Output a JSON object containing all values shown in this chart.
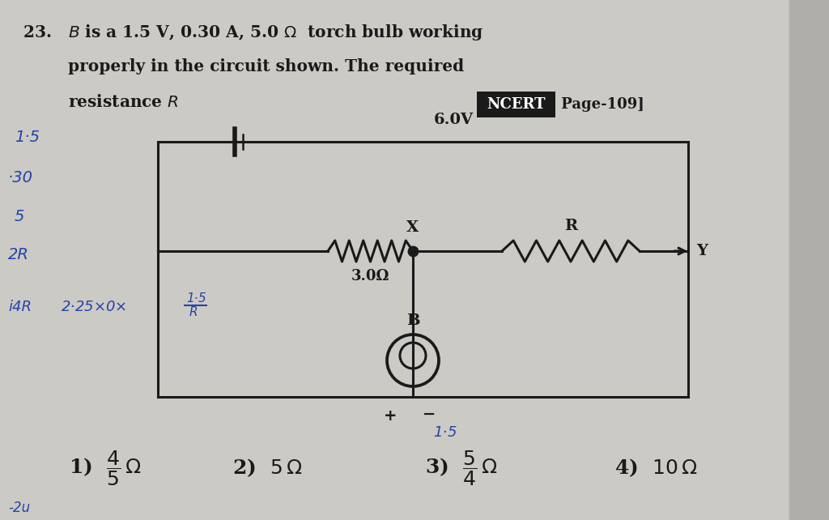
{
  "bg_color": "#cccac5",
  "right_strip_color": "#b0aeaa",
  "black": "#1a1a1a",
  "hw_color": "#2244aa",
  "circuit": {
    "battery_label": "6.0V",
    "resistor1_label": "3.0Ω",
    "node_x_label": "X",
    "resistor2_label": "R",
    "node_y_label": "Y",
    "bulb_label": "B",
    "plus_label": "+",
    "minus_label": "−",
    "handwritten_below": "1·5"
  },
  "q_line1": "23.   $B$ is a 1.5 V, 0.30 A, 5.0 $\\Omega$  torch bulb working",
  "q_line2": "        properly in the circuit shown. The required",
  "q_line3": "        resistance $R$",
  "ncert_label": "NCERT",
  "page_label": " Page-109]",
  "hw_left": [
    "1·5",
    "·30",
    "5",
    "2R"
  ],
  "hw_formula_1": "i4R   2·25×0×",
  "hw_formula_2": "1·5",
  "hw_formula_3": "R",
  "ans1": "1)  $\\dfrac{4}{5}\\,\\Omega$",
  "ans2": "2)  $5\\,\\Omega$",
  "ans3": "3)  $\\dfrac{5}{4}\\,\\Omega$",
  "ans4": "4)  $10\\,\\Omega$",
  "hw_bottom": "-2u"
}
